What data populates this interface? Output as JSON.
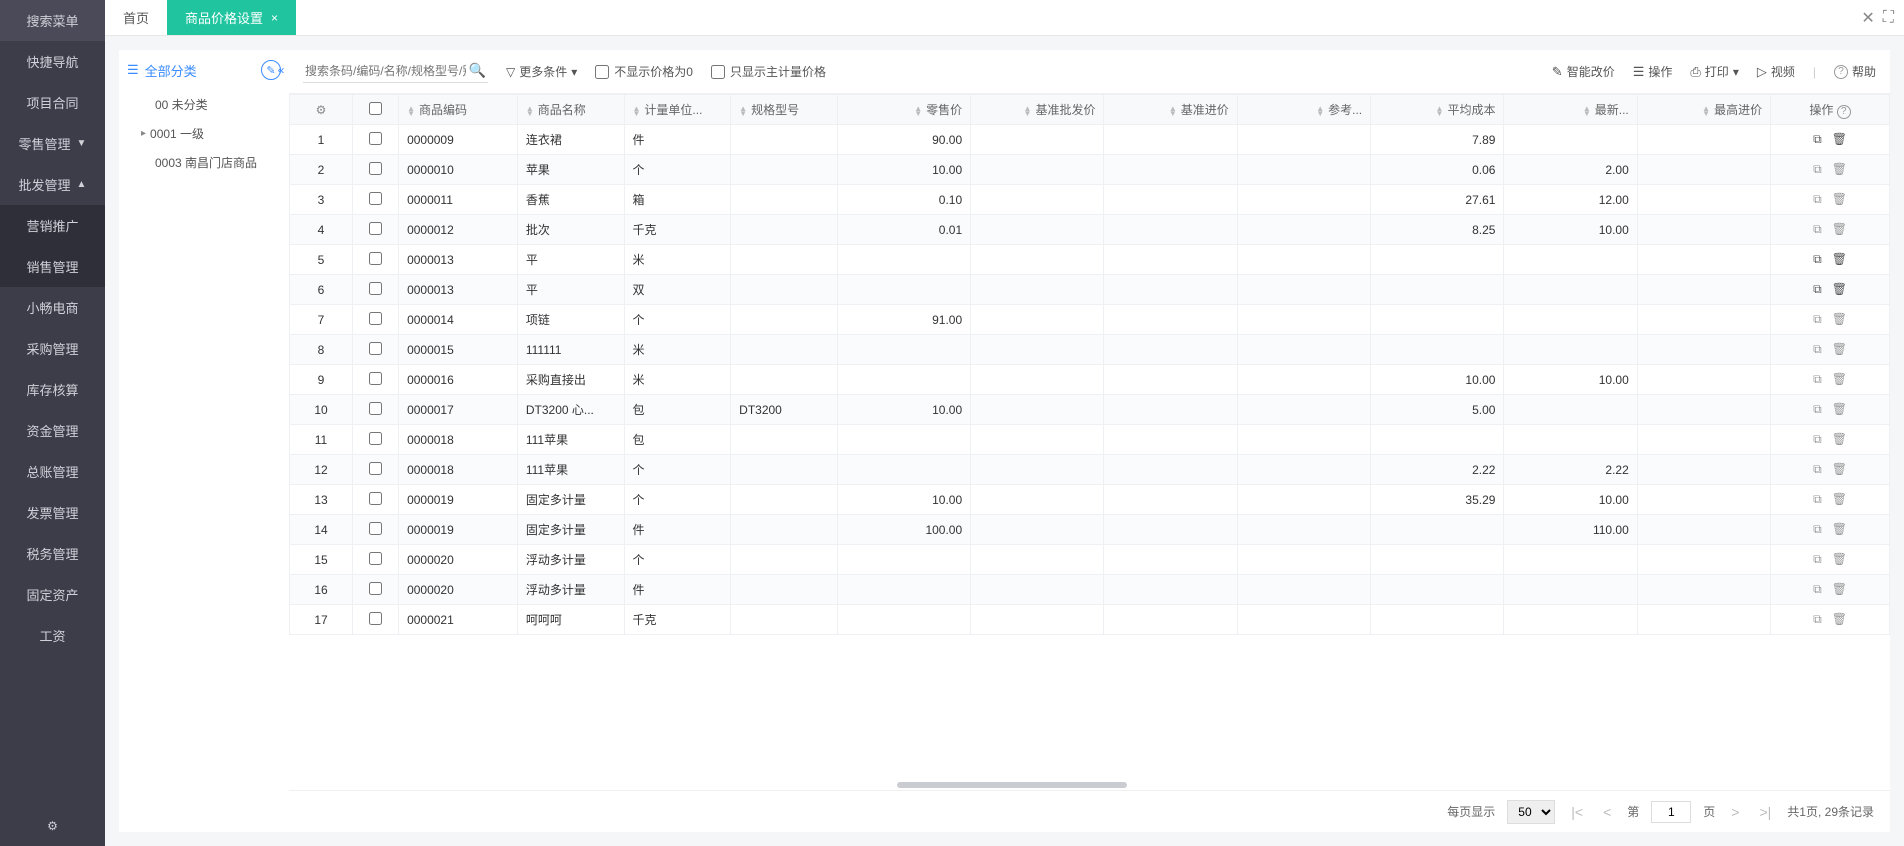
{
  "sidebar": {
    "items": [
      {
        "label": "搜索菜单",
        "caret": ""
      },
      {
        "label": "快捷导航",
        "caret": ""
      },
      {
        "label": "项目合同",
        "caret": ""
      },
      {
        "label": "零售管理",
        "caret": "▼"
      },
      {
        "label": "批发管理",
        "caret": "▲",
        "expanded": true
      },
      {
        "label": "小畅电商",
        "caret": ""
      },
      {
        "label": "采购管理",
        "caret": ""
      },
      {
        "label": "库存核算",
        "caret": ""
      },
      {
        "label": "资金管理",
        "caret": ""
      },
      {
        "label": "总账管理",
        "caret": ""
      },
      {
        "label": "发票管理",
        "caret": ""
      },
      {
        "label": "税务管理",
        "caret": ""
      },
      {
        "label": "固定资产",
        "caret": ""
      },
      {
        "label": "工资",
        "caret": ""
      }
    ],
    "sub_items": [
      {
        "label": "营销推广"
      },
      {
        "label": "销售管理"
      }
    ]
  },
  "tabs": {
    "items": [
      {
        "label": "首页",
        "active": false,
        "closable": false
      },
      {
        "label": "商品价格设置",
        "active": true,
        "closable": true
      }
    ]
  },
  "tree": {
    "header": "全部分类",
    "nodes": [
      {
        "label": "00 未分类",
        "expandable": false
      },
      {
        "label": "0001 一级",
        "expandable": true
      },
      {
        "label": "0003 南昌门店商品",
        "expandable": false
      }
    ]
  },
  "toolbar": {
    "search_placeholder": "搜索条码/编码/名称/规格型号/别名",
    "more_conditions": "更多条件",
    "hide_zero_price": "不显示价格为0",
    "only_main_unit": "只显示主计量价格",
    "smart_price": "智能改价",
    "operate": "操作",
    "print": "打印",
    "video": "视频",
    "help": "帮助"
  },
  "table": {
    "columns": [
      "商品编码",
      "商品名称",
      "计量单位...",
      "规格型号",
      "零售价",
      "基准批发价",
      "基准进价",
      "参考...",
      "平均成本",
      "最新...",
      "最高进价",
      "操作"
    ],
    "rows": [
      {
        "idx": "1",
        "code": "0000009",
        "name": "连衣裙",
        "unit": "件",
        "spec": "",
        "retail": "90.00",
        "wholesale": "",
        "purchase": "",
        "ref": "",
        "avg": "7.89",
        "latest": "",
        "maxp": "",
        "act_enabled": true
      },
      {
        "idx": "2",
        "code": "0000010",
        "name": "苹果",
        "unit": "个",
        "spec": "",
        "retail": "10.00",
        "wholesale": "",
        "purchase": "",
        "ref": "",
        "avg": "0.06",
        "latest": "2.00",
        "maxp": "",
        "act_enabled": false
      },
      {
        "idx": "3",
        "code": "0000011",
        "name": "香蕉",
        "unit": "箱",
        "spec": "",
        "retail": "0.10",
        "wholesale": "",
        "purchase": "",
        "ref": "",
        "avg": "27.61",
        "latest": "12.00",
        "maxp": "",
        "act_enabled": false
      },
      {
        "idx": "4",
        "code": "0000012",
        "name": "批次",
        "unit": "千克",
        "spec": "",
        "retail": "0.01",
        "wholesale": "",
        "purchase": "",
        "ref": "",
        "avg": "8.25",
        "latest": "10.00",
        "maxp": "",
        "act_enabled": false
      },
      {
        "idx": "5",
        "code": "0000013",
        "name": "平",
        "unit": "米",
        "spec": "",
        "retail": "",
        "wholesale": "",
        "purchase": "",
        "ref": "",
        "avg": "",
        "latest": "",
        "maxp": "",
        "act_enabled": true
      },
      {
        "idx": "6",
        "code": "0000013",
        "name": "平",
        "unit": "双",
        "spec": "",
        "retail": "",
        "wholesale": "",
        "purchase": "",
        "ref": "",
        "avg": "",
        "latest": "",
        "maxp": "",
        "act_enabled": true
      },
      {
        "idx": "7",
        "code": "0000014",
        "name": "项链",
        "unit": "个",
        "spec": "",
        "retail": "91.00",
        "wholesale": "",
        "purchase": "",
        "ref": "",
        "avg": "",
        "latest": "",
        "maxp": "",
        "act_enabled": false
      },
      {
        "idx": "8",
        "code": "0000015",
        "name": "111111",
        "unit": "米",
        "spec": "",
        "retail": "",
        "wholesale": "",
        "purchase": "",
        "ref": "",
        "avg": "",
        "latest": "",
        "maxp": "",
        "act_enabled": false
      },
      {
        "idx": "9",
        "code": "0000016",
        "name": "采购直接出",
        "unit": "米",
        "spec": "",
        "retail": "",
        "wholesale": "",
        "purchase": "",
        "ref": "",
        "avg": "10.00",
        "latest": "10.00",
        "maxp": "",
        "act_enabled": false
      },
      {
        "idx": "10",
        "code": "0000017",
        "name": "DT3200 心...",
        "unit": "包",
        "spec": "DT3200",
        "retail": "10.00",
        "wholesale": "",
        "purchase": "",
        "ref": "",
        "avg": "5.00",
        "latest": "",
        "maxp": "",
        "act_enabled": false
      },
      {
        "idx": "11",
        "code": "0000018",
        "name": "111苹果",
        "unit": "包",
        "spec": "",
        "retail": "",
        "wholesale": "",
        "purchase": "",
        "ref": "",
        "avg": "",
        "latest": "",
        "maxp": "",
        "act_enabled": false
      },
      {
        "idx": "12",
        "code": "0000018",
        "name": "111苹果",
        "unit": "个",
        "spec": "",
        "retail": "",
        "wholesale": "",
        "purchase": "",
        "ref": "",
        "avg": "2.22",
        "latest": "2.22",
        "maxp": "",
        "act_enabled": false
      },
      {
        "idx": "13",
        "code": "0000019",
        "name": "固定多计量",
        "unit": "个",
        "spec": "",
        "retail": "10.00",
        "wholesale": "",
        "purchase": "",
        "ref": "",
        "avg": "35.29",
        "latest": "10.00",
        "maxp": "",
        "act_enabled": false
      },
      {
        "idx": "14",
        "code": "0000019",
        "name": "固定多计量",
        "unit": "件",
        "spec": "",
        "retail": "100.00",
        "wholesale": "",
        "purchase": "",
        "ref": "",
        "avg": "",
        "latest": "110.00",
        "maxp": "",
        "act_enabled": false
      },
      {
        "idx": "15",
        "code": "0000020",
        "name": "浮动多计量",
        "unit": "个",
        "spec": "",
        "retail": "",
        "wholesale": "",
        "purchase": "",
        "ref": "",
        "avg": "",
        "latest": "",
        "maxp": "",
        "act_enabled": false
      },
      {
        "idx": "16",
        "code": "0000020",
        "name": "浮动多计量",
        "unit": "件",
        "spec": "",
        "retail": "",
        "wholesale": "",
        "purchase": "",
        "ref": "",
        "avg": "",
        "latest": "",
        "maxp": "",
        "act_enabled": false
      },
      {
        "idx": "17",
        "code": "0000021",
        "name": "呵呵呵",
        "unit": "千克",
        "spec": "",
        "retail": "",
        "wholesale": "",
        "purchase": "",
        "ref": "",
        "avg": "",
        "latest": "",
        "maxp": "",
        "act_enabled": false
      }
    ]
  },
  "pager": {
    "per_page_label": "每页显示",
    "per_page_value": "50",
    "page_prefix": "第",
    "page_value": "1",
    "page_suffix": "页",
    "summary": "共1页, 29条记录"
  },
  "colors": {
    "sidebar_bg": "#3d3d4a",
    "active_tab": "#20c5a0",
    "link_blue": "#3b8cff"
  }
}
